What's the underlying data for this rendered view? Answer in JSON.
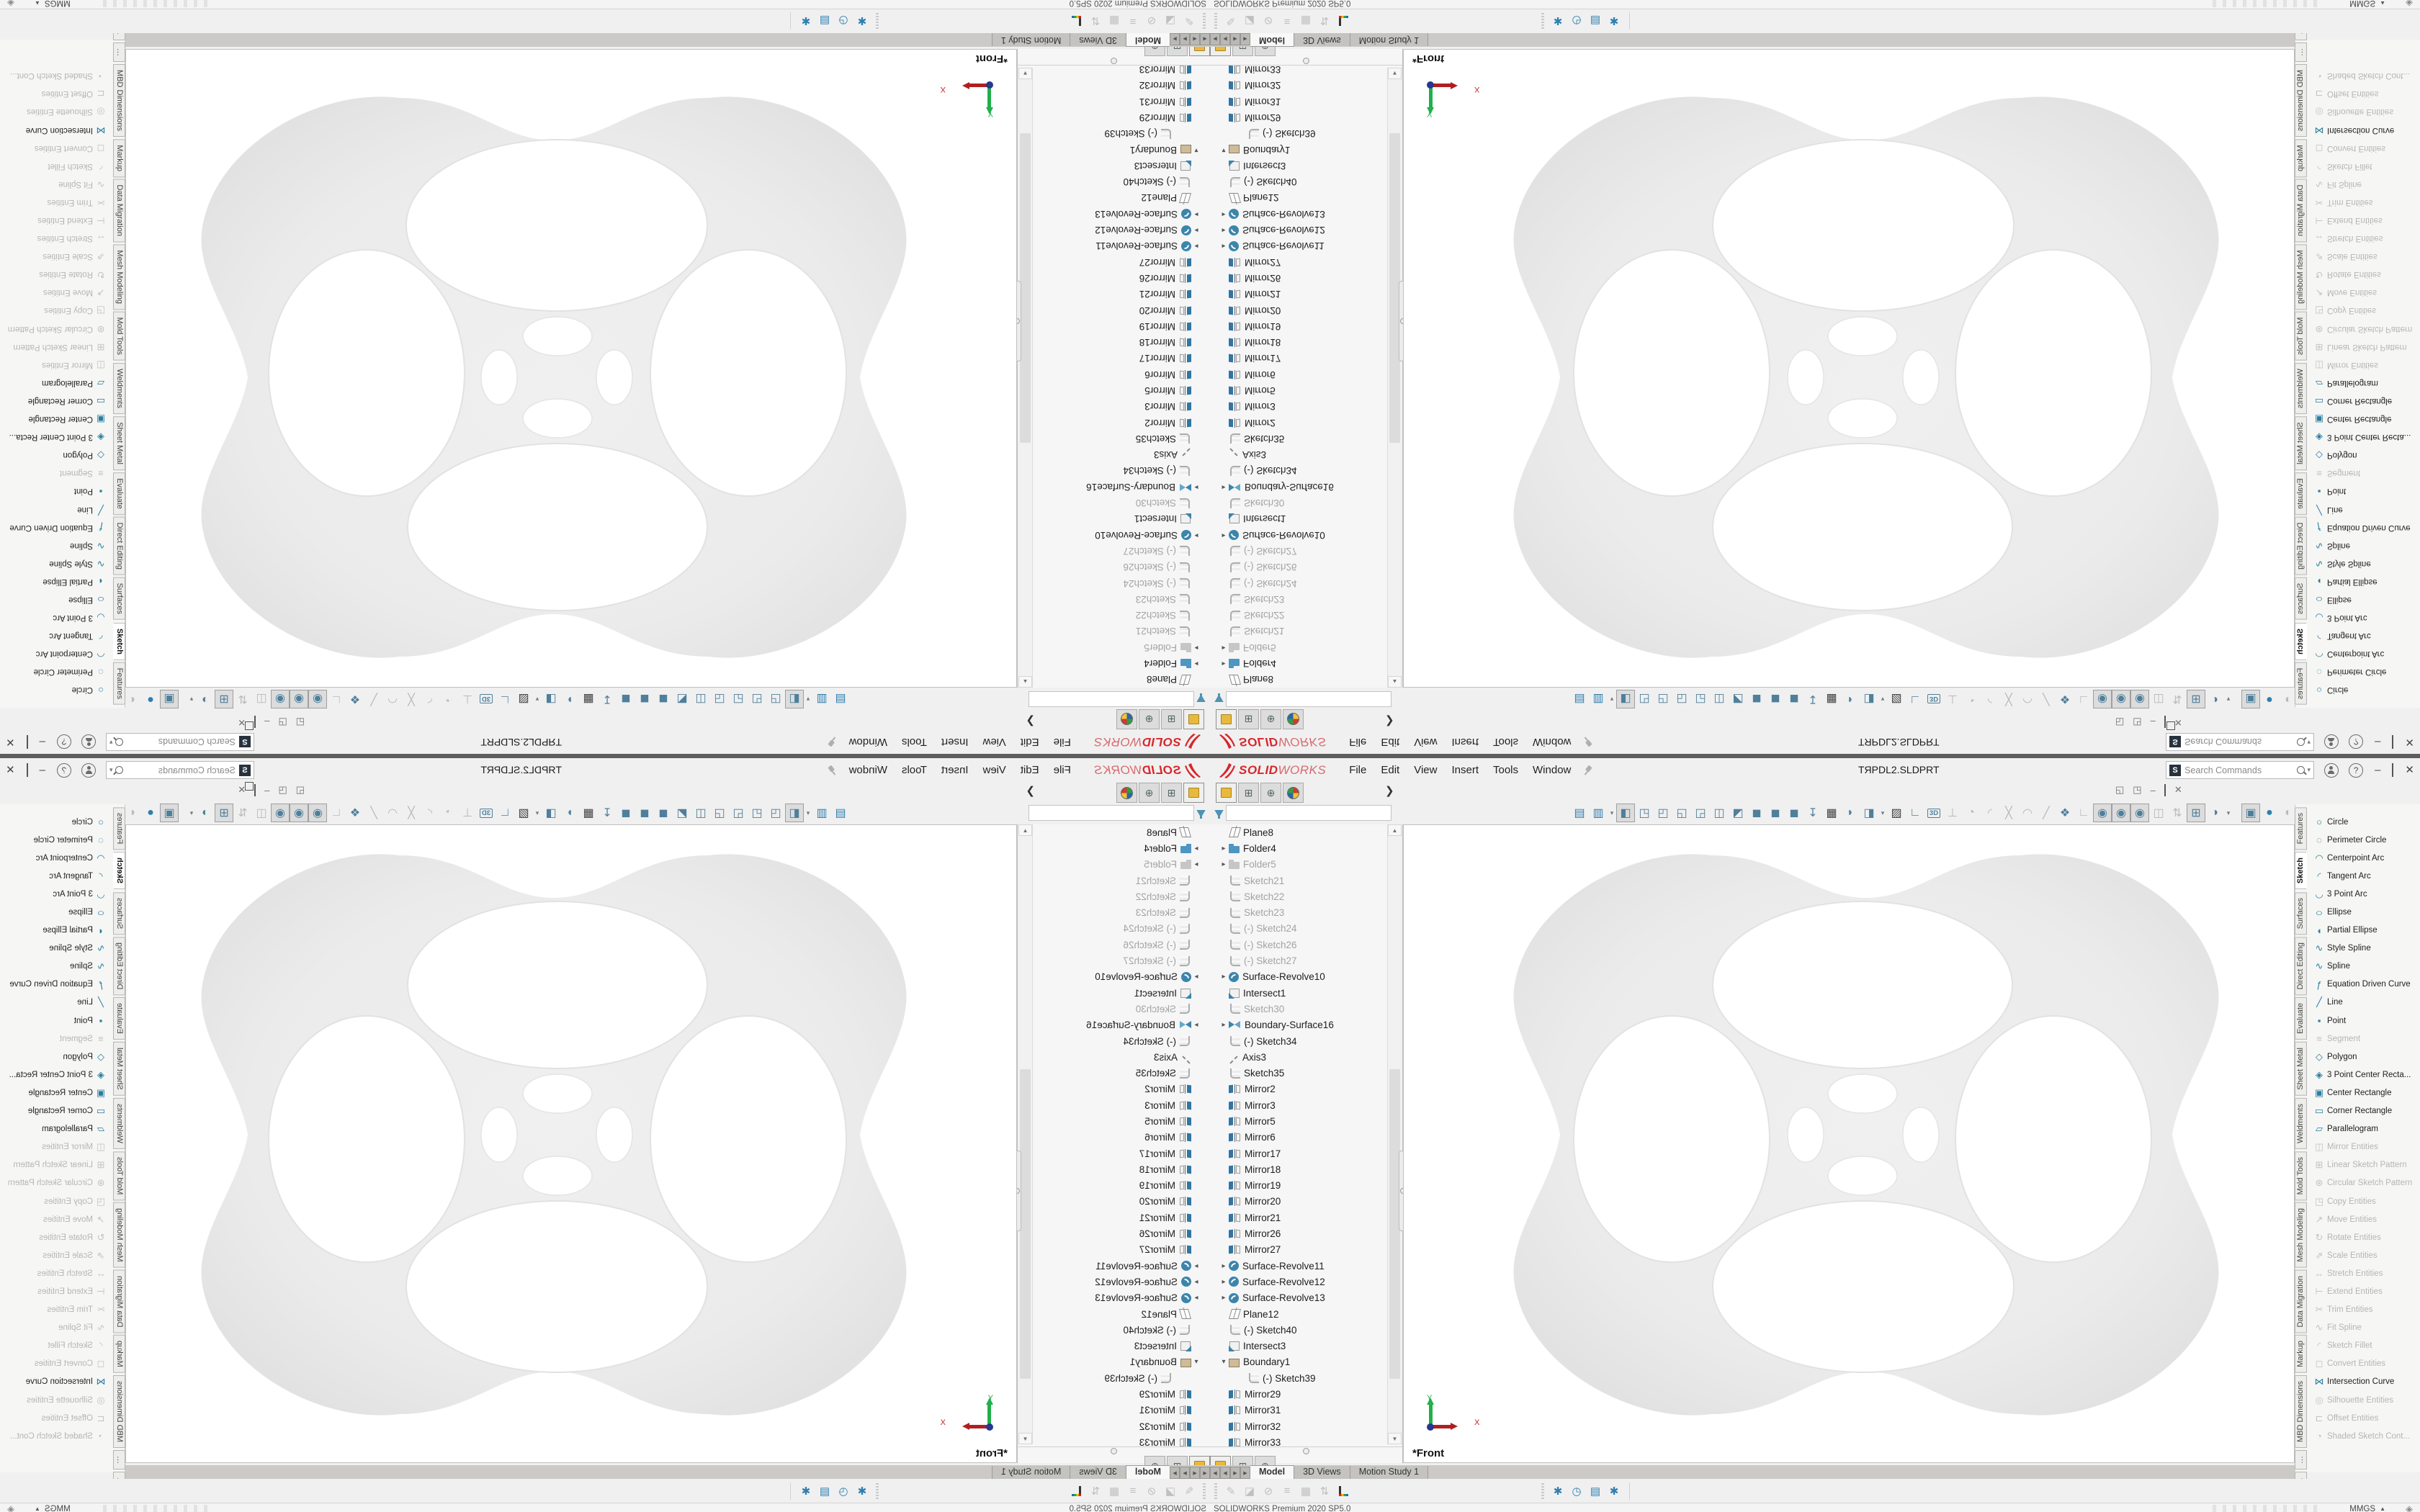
{
  "app": {
    "brand_mark": "3S",
    "brand_bold": "SOLID",
    "brand_light": "WORKS"
  },
  "titlebar": {
    "title": "TЯPDL2.SLDPRT",
    "menus": [
      "File",
      "Edit",
      "View",
      "Insert",
      "Tools",
      "Window"
    ],
    "search_placeholder": "Search Commands",
    "help_glyph": "?",
    "window_controls": {
      "minimize": "–",
      "close": "✕"
    }
  },
  "fm_panel": {
    "tabs": [
      "featuremanager-tab",
      "propertymanager-tab",
      "configurationmanager-tab",
      "displaymanager-tab"
    ],
    "chevron": "❯",
    "tree": [
      {
        "label": "Plane8",
        "icon": "plane"
      },
      {
        "label": "Folder4",
        "icon": "folder",
        "arrow": "r"
      },
      {
        "label": "Folder5",
        "icon": "folder-g",
        "arrow": "r",
        "gray": true
      },
      {
        "label": "Sketch21",
        "icon": "sketch",
        "gray": true
      },
      {
        "label": "Sketch22",
        "icon": "sketch",
        "gray": true
      },
      {
        "label": "Sketch23",
        "icon": "sketch",
        "gray": true
      },
      {
        "label": "(-) Sketch24",
        "icon": "sketch",
        "gray": true
      },
      {
        "label": "(-) Sketch26",
        "icon": "sketch",
        "gray": true
      },
      {
        "label": "(-) Sketch27",
        "icon": "sketch",
        "gray": true
      },
      {
        "label": "Surface-Revolve10",
        "icon": "revolve",
        "arrow": "r"
      },
      {
        "label": "Intersect1",
        "icon": "intersect"
      },
      {
        "label": "Sketch30",
        "icon": "sketch",
        "gray": true
      },
      {
        "label": "Boundary-Surface16",
        "icon": "bsurf",
        "arrow": "r"
      },
      {
        "label": "(-) Sketch34",
        "icon": "sketch"
      },
      {
        "label": "Axis3",
        "icon": "axis"
      },
      {
        "label": "Sketch35",
        "icon": "sketch"
      },
      {
        "label": "Mirror2",
        "icon": "mirror"
      },
      {
        "label": "Mirror3",
        "icon": "mirror"
      },
      {
        "label": "Mirror5",
        "icon": "mirror"
      },
      {
        "label": "Mirror6",
        "icon": "mirror"
      },
      {
        "label": "Mirror17",
        "icon": "mirror"
      },
      {
        "label": "Mirror18",
        "icon": "mirror"
      },
      {
        "label": "Mirror19",
        "icon": "mirror"
      },
      {
        "label": "Mirror20",
        "icon": "mirror"
      },
      {
        "label": "Mirror21",
        "icon": "mirror"
      },
      {
        "label": "Mirror26",
        "icon": "mirror"
      },
      {
        "label": "Mirror27",
        "icon": "mirror"
      },
      {
        "label": "Surface-Revolve11",
        "icon": "revolve",
        "arrow": "r"
      },
      {
        "label": "Surface-Revolve12",
        "icon": "revolve",
        "arrow": "r"
      },
      {
        "label": "Surface-Revolve13",
        "icon": "revolve",
        "arrow": "r"
      },
      {
        "label": "Plane12",
        "icon": "plane"
      },
      {
        "label": "(-) Sketch40",
        "icon": "sketch"
      },
      {
        "label": "Intersect3",
        "icon": "intersect"
      },
      {
        "label": "Boundary1",
        "icon": "boundary",
        "arrow": "d"
      },
      {
        "label": "(-) Sketch39",
        "icon": "sketch",
        "indent": true
      },
      {
        "label": "Mirror29",
        "icon": "mirror2"
      },
      {
        "label": "Mirror31",
        "icon": "mirror2"
      },
      {
        "label": "Mirror32",
        "icon": "mirror2"
      },
      {
        "label": "Mirror33",
        "icon": "mirror2"
      }
    ]
  },
  "toolbar": {
    "items": [
      {
        "n": "save",
        "g": "▤",
        "c": "blue"
      },
      {
        "n": "model-reload",
        "g": "▥",
        "c": "blue"
      },
      {
        "n": "dropdown-caret",
        "g": "▾",
        "c": "small"
      },
      {
        "n": "view-orientation-front",
        "g": "◧",
        "p": true
      },
      {
        "n": "view-orientation-back",
        "g": "◳"
      },
      {
        "n": "view-orientation-left",
        "g": "◰"
      },
      {
        "n": "view-orientation-right",
        "g": "◱"
      },
      {
        "n": "view-orientation-top",
        "g": "◲"
      },
      {
        "n": "view-orientation-bottom",
        "g": "◫"
      },
      {
        "n": "view-orientation-isometric",
        "g": "◩"
      },
      {
        "n": "view-shaded-with-edges",
        "g": "◼"
      },
      {
        "n": "view-shaded",
        "g": "◼"
      },
      {
        "n": "view-shadows",
        "g": "◼"
      },
      {
        "n": "normal-to",
        "g": "↧"
      },
      {
        "n": "display-settings",
        "g": "▦",
        "c": "dark"
      },
      {
        "n": "section-view",
        "g": "◗"
      },
      {
        "n": "display-style",
        "g": "◨"
      },
      {
        "n": "dropdown-caret",
        "g": "▾",
        "c": "small"
      },
      {
        "n": "zebra-stripes",
        "g": "▨",
        "c": "dark"
      },
      {
        "n": "edit-sketch",
        "g": "∟"
      },
      {
        "n": "3d-sketch",
        "g": "3D",
        "chip": true
      },
      {
        "n": "hide-relations",
        "g": "⊥",
        "c": "gray"
      },
      {
        "n": "hide-dimensions",
        "g": "◔",
        "c": "gray"
      },
      {
        "n": "hide-fillets",
        "g": "◜",
        "c": "gray"
      },
      {
        "n": "hide-intersections",
        "g": "╳",
        "c": "gray"
      },
      {
        "n": "hide-arcs",
        "g": "◠",
        "c": "gray"
      },
      {
        "n": "hide-lines",
        "g": "╱",
        "c": "gray"
      },
      {
        "n": "instant3d",
        "g": "❖"
      },
      {
        "n": "hide-all-types",
        "g": "∟",
        "c": "gray"
      },
      {
        "n": "show-3d-sketch-planes",
        "g": "◉",
        "p": true
      },
      {
        "n": "show-curves",
        "g": "◉",
        "p": true
      },
      {
        "n": "show-sketch-points",
        "g": "◉",
        "p": true
      },
      {
        "n": "show-planes",
        "g": "◫",
        "c": "gray"
      },
      {
        "n": "show-axes",
        "g": "⇅",
        "c": "gray"
      },
      {
        "n": "show-grid",
        "g": "⊞",
        "p": true
      },
      {
        "n": "view-visibility",
        "g": "◑"
      },
      {
        "n": "dropdown-caret",
        "g": "▾",
        "c": "small"
      },
      {
        "sep": true
      },
      {
        "n": "edit-appearance",
        "g": "▣",
        "p": true
      },
      {
        "n": "apply-appearance",
        "g": "●",
        "c": "blue"
      },
      {
        "n": "apply-scene",
        "g": "◐",
        "c": "gray"
      },
      {
        "n": "view-cube",
        "g": "◻",
        "c": "gray"
      }
    ]
  },
  "viewport": {
    "view_label": "*Front",
    "axis_x": "X",
    "axis_y": "Y"
  },
  "cmd_panel": {
    "tabs": [
      {
        "label": "Features"
      },
      {
        "label": "Sketch",
        "active": true
      },
      {
        "label": "Surfaces"
      },
      {
        "label": "Direct Editing"
      },
      {
        "label": "Evaluate"
      },
      {
        "label": "Sheet Metal"
      },
      {
        "label": "Weldments"
      },
      {
        "label": "Mold Tools"
      },
      {
        "label": "Mesh Modeling"
      },
      {
        "label": "Data Migration"
      },
      {
        "label": "Markup"
      },
      {
        "label": "MBD Dimensions"
      },
      {
        "label": "…"
      },
      {
        "label": "…"
      }
    ],
    "items": [
      {
        "label": "Circle",
        "glyph": "○",
        "enabled": true
      },
      {
        "label": "Perimeter Circle",
        "glyph": "◌",
        "enabled": true
      },
      {
        "label": "Centerpoint Arc",
        "glyph": "◠",
        "enabled": true
      },
      {
        "label": "Tangent Arc",
        "glyph": "◜",
        "enabled": true
      },
      {
        "label": "3 Point Arc",
        "glyph": "◡",
        "enabled": true
      },
      {
        "label": "Ellipse",
        "glyph": "○",
        "wide": true,
        "enabled": true
      },
      {
        "label": "Partial Ellipse",
        "glyph": "◖",
        "enabled": true
      },
      {
        "label": "Style Spline",
        "glyph": "∿",
        "enabled": true
      },
      {
        "label": "Spline",
        "glyph": "∿",
        "enabled": true
      },
      {
        "label": "Equation Driven Curve",
        "glyph": "ƒ",
        "enabled": true
      },
      {
        "label": "Line",
        "glyph": "╱",
        "enabled": true
      },
      {
        "label": "Point",
        "glyph": "▪",
        "enabled": true
      },
      {
        "label": "Segment",
        "glyph": "≡",
        "enabled": false
      },
      {
        "label": "Polygon",
        "glyph": "◇",
        "enabled": true
      },
      {
        "label": "3 Point Center Recta...",
        "glyph": "◈",
        "enabled": true
      },
      {
        "label": "Center Rectangle",
        "glyph": "▣",
        "enabled": true
      },
      {
        "label": "Corner Rectangle",
        "glyph": "▭",
        "enabled": true
      },
      {
        "label": "Parallelogram",
        "glyph": "▱",
        "enabled": true
      },
      {
        "label": "Mirror Entities",
        "glyph": "◫",
        "enabled": false
      },
      {
        "label": "Linear Sketch Pattern",
        "glyph": "⊞",
        "enabled": false
      },
      {
        "label": "Circular Sketch Pattern",
        "glyph": "⊛",
        "enabled": false
      },
      {
        "label": "Copy Entities",
        "glyph": "◳",
        "enabled": false
      },
      {
        "label": "Move Entities",
        "glyph": "↗",
        "enabled": false
      },
      {
        "label": "Rotate Entities",
        "glyph": "↻",
        "enabled": false
      },
      {
        "label": "Scale Entities",
        "glyph": "⇗",
        "enabled": false
      },
      {
        "label": "Stretch Entities",
        "glyph": "↔",
        "enabled": false
      },
      {
        "label": "Extend Entities",
        "glyph": "⊢",
        "enabled": false
      },
      {
        "label": "Trim Entities",
        "glyph": "✂",
        "enabled": false
      },
      {
        "label": "Fit Spline",
        "glyph": "∿",
        "enabled": false
      },
      {
        "label": "Sketch Fillet",
        "glyph": "◜",
        "enabled": false
      },
      {
        "label": "Convert Entities",
        "glyph": "◻",
        "enabled": false
      },
      {
        "label": "Intersection Curve",
        "glyph": "⋈",
        "enabled": true
      },
      {
        "label": "Silhouette Entities",
        "glyph": "◎",
        "enabled": false
      },
      {
        "label": "Offset Entities",
        "glyph": "⊏",
        "enabled": false
      },
      {
        "label": "Shaded Sketch Cont...",
        "glyph": "◔",
        "enabled": false
      }
    ]
  },
  "doc_tabs": {
    "nav": [
      "◀",
      "◀",
      "▶",
      "▶"
    ],
    "tabs": [
      {
        "label": "Model",
        "active": true
      },
      {
        "label": "3D Views"
      },
      {
        "label": "Motion Study 1"
      }
    ]
  },
  "bottom_toolbar": {
    "gray_icons": [
      {
        "n": "markup-pen",
        "g": "✎"
      },
      {
        "n": "markup-layers",
        "g": "◪"
      },
      {
        "n": "markup-erase",
        "g": "⊘"
      },
      {
        "n": "markup-lines",
        "g": "≡"
      },
      {
        "n": "markup-grid",
        "g": "▦"
      },
      {
        "n": "markup-flip",
        "g": "⇅"
      }
    ],
    "blue_icons": [
      {
        "n": "settings-check",
        "g": "✱"
      },
      {
        "n": "history-clock",
        "g": "◷"
      },
      {
        "n": "folder-options",
        "g": "▤"
      },
      {
        "n": "gear-options",
        "g": "✱"
      }
    ]
  },
  "status": {
    "left": "SOLIDWORKS Premium 2020 SP5.0",
    "units": "MMGS",
    "units_caret": "▲",
    "tag_glyph": "◈"
  }
}
